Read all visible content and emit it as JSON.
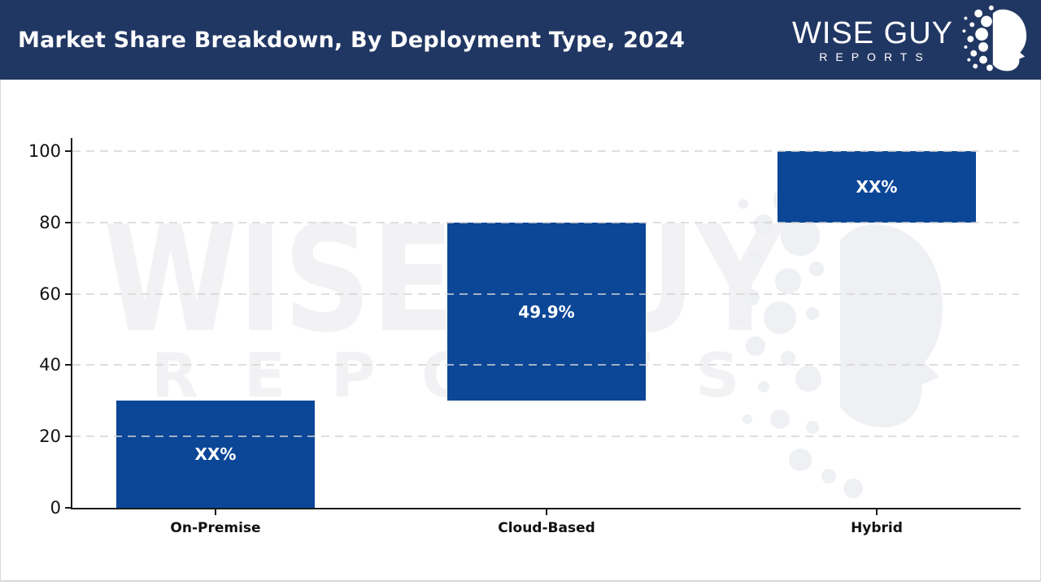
{
  "header": {
    "title": "Market Share Breakdown, By Deployment Type, 2024"
  },
  "brand": {
    "name": "WISE GUY",
    "reports": "REPORTS"
  },
  "watermark": {
    "line1": "WISE GUY",
    "line2": "REPORTS"
  },
  "chart_data": {
    "type": "bar",
    "subtype": "waterfall",
    "title": "Market Share Breakdown, By Deployment Type, 2024",
    "categories": [
      "On-Premise",
      "Cloud-Based",
      "Hybrid"
    ],
    "segments": [
      {
        "category": "On-Premise",
        "start": 0,
        "end": 30,
        "label": "XX%"
      },
      {
        "category": "Cloud-Based",
        "start": 30,
        "end": 79.9,
        "label": "49.9%"
      },
      {
        "category": "Hybrid",
        "start": 79.9,
        "end": 100,
        "label": "XX%"
      }
    ],
    "ylim": [
      0,
      100
    ],
    "yticks": [
      0,
      20,
      40,
      60,
      80,
      100
    ],
    "xlabel": "",
    "ylabel": "",
    "grid": "dashed-horizontal",
    "legend": false,
    "bar_color": "#0b4697",
    "bar_label_color": "#ffffff"
  },
  "colors": {
    "header_bg": "#213763",
    "bar": "#0b4697",
    "grid": "#d4d4d4",
    "axis": "#1a1a1a",
    "watermark": "#f2f2f5",
    "card_border": "#d9d9d9"
  }
}
